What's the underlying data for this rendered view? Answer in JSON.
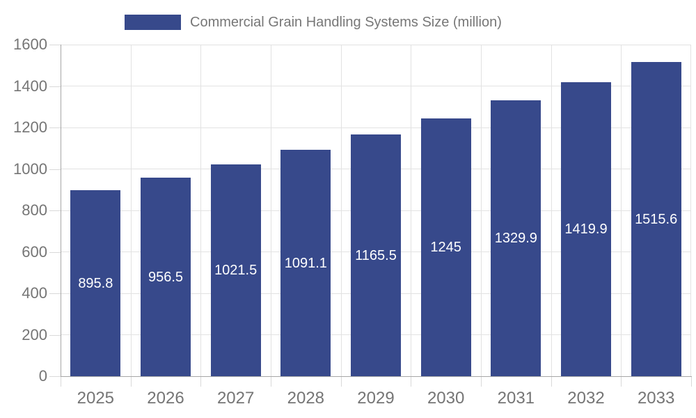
{
  "colors": {
    "bar": "#37498b",
    "grid": "#e2e2e2",
    "axis_line": "#a6a6a6",
    "tick_mark": "#d9d9d9",
    "axis_text": "#757575",
    "legend_text": "#777777",
    "value_text": "#ffffff",
    "background": "#ffffff"
  },
  "chart_data": {
    "type": "bar",
    "title": "Commercial Grain Handling Systems Size (million)",
    "categories": [
      "2025",
      "2026",
      "2027",
      "2028",
      "2029",
      "2030",
      "2031",
      "2032",
      "2033"
    ],
    "values": [
      895.8,
      956.5,
      1021.5,
      1091.1,
      1165.5,
      1245,
      1329.9,
      1419.9,
      1515.6
    ],
    "value_labels": [
      "895.8",
      "956.5",
      "1021.5",
      "1091.1",
      "1165.5",
      "1245",
      "1329.9",
      "1419.9",
      "1515.6"
    ],
    "xlabel": "",
    "ylabel": "",
    "ylim": [
      0,
      1600
    ],
    "ytick_step": 200,
    "ytick_labels": [
      "0",
      "200",
      "400",
      "600",
      "800",
      "1000",
      "1200",
      "1400",
      "1600"
    ],
    "grid": true,
    "legend_position": "top",
    "value_label_position": "inside-center"
  }
}
